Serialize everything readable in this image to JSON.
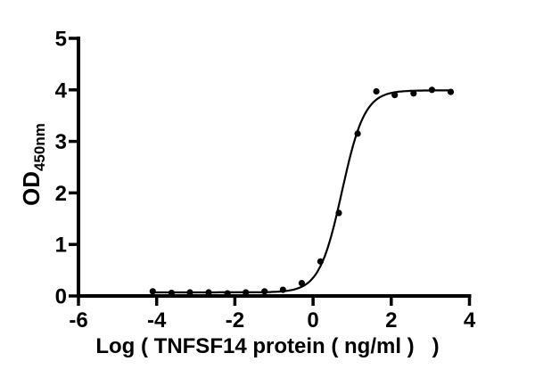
{
  "figure": {
    "background": "#ffffff"
  },
  "chart_data": {
    "type": "scatter",
    "title": "",
    "xlabel": "Log ( TNFSF14 protein ( ng/ml )   )",
    "ylabel_main": "OD",
    "ylabel_sub": "450nm",
    "xlim": [
      -6,
      4
    ],
    "ylim": [
      0,
      5
    ],
    "x_ticks": [
      -6,
      -4,
      -2,
      0,
      2,
      4
    ],
    "y_ticks": [
      0,
      1,
      2,
      3,
      4,
      5
    ],
    "grid": false,
    "legend": "none",
    "points": {
      "x": [
        -4.1,
        -3.62,
        -3.15,
        -2.67,
        -2.19,
        -1.72,
        -1.24,
        -0.77,
        -0.29,
        0.19,
        0.66,
        1.14,
        1.62,
        2.09,
        2.57,
        3.04,
        3.52
      ],
      "y": [
        0.09,
        0.06,
        0.07,
        0.07,
        0.05,
        0.07,
        0.09,
        0.12,
        0.25,
        0.67,
        1.61,
        3.15,
        3.97,
        3.9,
        3.93,
        4.0,
        3.96
      ]
    },
    "fit_curve": {
      "model": "4PL-sigmoid",
      "bottom": 0.07,
      "top": 3.99,
      "logEC50": 0.74,
      "hillslope": 1.5,
      "x_range": [
        -4.1,
        3.53
      ]
    },
    "colors": {
      "marker": "#000000",
      "line": "#000000",
      "axis": "#000000",
      "text": "#000000"
    }
  }
}
